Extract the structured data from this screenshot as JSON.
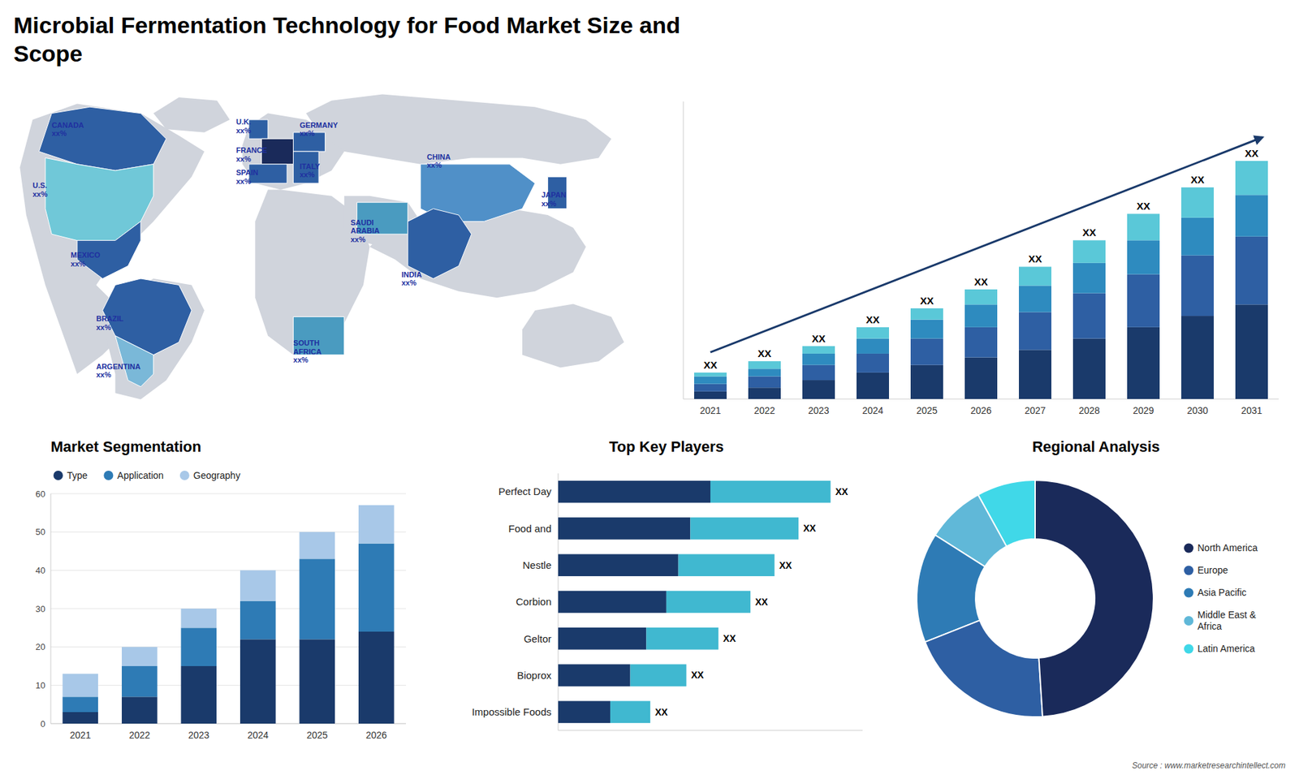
{
  "title": "Microbial Fermentation Technology for Food Market Size and\nScope",
  "annotations": [
    "Source : www.marketresearchintellect.com"
  ],
  "chart_data": [
    {
      "type": "map",
      "labels": [
        "CANADA\nxx%",
        "U.S.\nxx%",
        "MEXICO\nxx%",
        "BRAZIL\nxx%",
        "ARGENTINA\nxx%",
        "U.K.\nxx%",
        "FRANCE\nxx%",
        "SPAIN\nxx%",
        "GERMANY\nxx%",
        "ITALY\nxx%",
        "SAUDI\nARABIA\nxx%",
        "SOUTH\nAFRICA\nxx%",
        "CHINA\nxx%",
        "INDIA\nxx%",
        "JAPAN\nxx%"
      ],
      "colors": [
        "#2e5fa3",
        "#70c8d8",
        "#2e5fa3",
        "#2e5fa3",
        "#7ab8d8",
        "#2e5fa3",
        "#1a2a5a",
        "#2e5fa3",
        "#2e5fa3",
        "#2e5fa3",
        "#4a9bc0",
        "#4a9bc0",
        "#5090c8",
        "#2e5fa3",
        "#2e5fa3"
      ]
    },
    {
      "type": "bar",
      "stacked": true,
      "categories": [
        "2021",
        "2022",
        "2023",
        "2024",
        "2025",
        "2026",
        "2027",
        "2028",
        "2029",
        "2030",
        "2031"
      ],
      "series": [
        {
          "color": "#1a3a6b",
          "values": [
            2,
            3,
            5,
            7,
            9,
            11,
            13,
            16,
            19,
            22,
            25
          ]
        },
        {
          "color": "#2e5fa3",
          "values": [
            2,
            3,
            4,
            5,
            7,
            8,
            10,
            12,
            14,
            16,
            18
          ]
        },
        {
          "color": "#2e8bbf",
          "values": [
            2,
            2,
            3,
            4,
            5,
            6,
            7,
            8,
            9,
            10,
            11
          ]
        },
        {
          "color": "#5ac8d8",
          "values": [
            1,
            2,
            2,
            3,
            3,
            4,
            5,
            6,
            7,
            8,
            9
          ]
        }
      ],
      "ylim": [
        0,
        78.75
      ],
      "tick_labels": "x",
      "grid": false,
      "annotations": [
        "XX",
        "XX",
        "XX",
        "XX",
        "XX",
        "XX",
        "XX",
        "XX",
        "XX",
        "XX",
        "XX"
      ]
    },
    {
      "type": "bar",
      "title": "Market Segmentation",
      "stacked": true,
      "categories": [
        "2021",
        "2022",
        "2023",
        "2024",
        "2025",
        "2026"
      ],
      "series": [
        {
          "name": "Type",
          "color": "#1a3a6b",
          "values": [
            3,
            7,
            15,
            22,
            22,
            24
          ]
        },
        {
          "name": "Application",
          "color": "#2e7bb5",
          "values": [
            4,
            8,
            10,
            10,
            21,
            23
          ]
        },
        {
          "name": "Geography",
          "color": "#a8c8e8",
          "values": [
            6,
            5,
            5,
            8,
            7,
            10
          ]
        }
      ],
      "ylim": [
        0,
        60
      ],
      "yticks": [
        0,
        10,
        20,
        30,
        40,
        50,
        60
      ],
      "grid": true,
      "legend": "top"
    },
    {
      "type": "bar",
      "title": "Top Key Players",
      "orientation": "horizontal",
      "stacked": true,
      "categories": [
        "Perfect Day",
        "Food and",
        "Nestle",
        "Corbion",
        "Geltor",
        "Bioprox",
        "Impossible Foods"
      ],
      "series": [
        {
          "color": "#1a3a6b",
          "values": [
            38,
            33,
            30,
            27,
            22,
            18,
            13
          ]
        },
        {
          "color": "#40b8d0",
          "values": [
            30,
            27,
            24,
            21,
            18,
            14,
            10
          ]
        }
      ],
      "xlim": [
        0,
        76
      ],
      "tick_labels": "y",
      "grid": false,
      "annotations": [
        "XX",
        "XX",
        "XX",
        "XX",
        "XX",
        "XX",
        "XX"
      ]
    },
    {
      "type": "pie",
      "title": "Regional Analysis",
      "values": [
        8,
        8,
        15,
        20,
        49
      ],
      "labels": [
        "Latin America",
        "Middle East &\nAfrica",
        "Asia Pacific",
        "Europe",
        "North America"
      ],
      "colors": [
        "#40d8e8",
        "#60b8d8",
        "#2e7bb5",
        "#2e5fa3",
        "#1a2a5a"
      ],
      "legend": "right"
    }
  ]
}
